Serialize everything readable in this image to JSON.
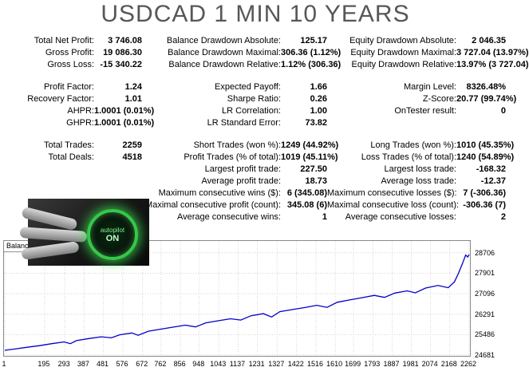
{
  "title": "USDCAD 1 MIN 10 YEARS",
  "autopilot": {
    "label": "autopilot",
    "state": "ON"
  },
  "stats": {
    "groups": [
      {
        "rows": [
          {
            "ll": "Total Net Profit:",
            "lv": "3 746.08",
            "ml": "Balance Drawdown Absolute:",
            "mv": "125.17",
            "rl": "Equity Drawdown Absolute:",
            "rv": "2 046.35"
          },
          {
            "ll": "Gross Profit:",
            "lv": "19 086.30",
            "ml": "Balance Drawdown Maximal:",
            "mv": "306.36 (1.12%)",
            "rl": "Equity Drawdown Maximal:",
            "rv": "3 727.04 (13.97%)"
          },
          {
            "ll": "Gross Loss:",
            "lv": "-15 340.22",
            "ml": "Balance Drawdown Relative:",
            "mv": "1.12% (306.36)",
            "rl": "Equity Drawdown Relative:",
            "rv": "13.97% (3 727.04)"
          }
        ]
      },
      {
        "rows": [
          {
            "ll": "Profit Factor:",
            "lv": "1.24",
            "ml": "Expected Payoff:",
            "mv": "1.66",
            "rl": "Margin Level:",
            "rv": "8326.48%"
          },
          {
            "ll": "Recovery Factor:",
            "lv": "1.01",
            "ml": "Sharpe Ratio:",
            "mv": "0.26",
            "rl": "Z-Score:",
            "rv": "20.77 (99.74%)"
          },
          {
            "ll": "AHPR:",
            "lv": "1.0001 (0.01%)",
            "ml": "LR Correlation:",
            "mv": "1.00",
            "rl": "OnTester result:",
            "rv": "0"
          },
          {
            "ll": "GHPR:",
            "lv": "1.0001 (0.01%)",
            "ml": "LR Standard Error:",
            "mv": "73.82",
            "rl": "",
            "rv": ""
          }
        ]
      },
      {
        "rows": [
          {
            "ll": "Total Trades:",
            "lv": "2259",
            "ml": "Short Trades (won %):",
            "mv": "1249 (44.92%)",
            "rl": "Long Trades (won %):",
            "rv": "1010 (45.35%)"
          },
          {
            "ll": "Total Deals:",
            "lv": "4518",
            "ml": "Profit Trades (% of total):",
            "mv": "1019 (45.11%)",
            "rl": "Loss Trades (% of total):",
            "rv": "1240 (54.89%)"
          },
          {
            "ll": "",
            "lv": "",
            "ml": "Largest profit trade:",
            "mv": "227.50",
            "rl": "Largest loss trade:",
            "rv": "-168.32"
          },
          {
            "ll": "",
            "lv": "",
            "ml": "Average profit trade:",
            "mv": "18.73",
            "rl": "Average loss trade:",
            "rv": "-12.37"
          },
          {
            "ll": "",
            "lv": "",
            "ml": "Maximum consecutive wins ($):",
            "mv": "6 (345.08)",
            "rl": "Maximum consecutive losses ($):",
            "rv": "7 (-306.36)"
          },
          {
            "ll": "",
            "lv": "",
            "ml": "Maximal consecutive profit (count):",
            "mv": "345.08 (6)",
            "rl": "Maximal consecutive loss (count):",
            "rv": "-306.36 (7)"
          },
          {
            "ll": "",
            "lv": "",
            "ml": "Average consecutive wins:",
            "mv": "1",
            "rl": "Average consecutive losses:",
            "rv": "2"
          }
        ]
      }
    ]
  },
  "chart_data": {
    "type": "line",
    "legend": "Balance",
    "line_color": "#0000C8",
    "grid": true,
    "xlim": [
      1,
      2262
    ],
    "ylim": [
      24681,
      29140
    ],
    "x_ticks": [
      1,
      195,
      293,
      387,
      481,
      576,
      672,
      762,
      856,
      948,
      1043,
      1137,
      1231,
      1327,
      1422,
      1516,
      1610,
      1699,
      1793,
      1887,
      1981,
      2074,
      2168,
      2262
    ],
    "y_ticks": [
      24681,
      25486,
      26291,
      27096,
      27901,
      28706
    ],
    "series": [
      {
        "name": "Balance",
        "points": [
          [
            1,
            24870
          ],
          [
            50,
            24920
          ],
          [
            110,
            24990
          ],
          [
            170,
            25050
          ],
          [
            230,
            25130
          ],
          [
            290,
            25200
          ],
          [
            320,
            25130
          ],
          [
            350,
            25250
          ],
          [
            410,
            25330
          ],
          [
            470,
            25400
          ],
          [
            520,
            25360
          ],
          [
            560,
            25480
          ],
          [
            620,
            25550
          ],
          [
            650,
            25460
          ],
          [
            700,
            25620
          ],
          [
            760,
            25700
          ],
          [
            820,
            25780
          ],
          [
            880,
            25860
          ],
          [
            930,
            25790
          ],
          [
            980,
            25950
          ],
          [
            1040,
            26030
          ],
          [
            1100,
            26110
          ],
          [
            1150,
            26060
          ],
          [
            1200,
            26230
          ],
          [
            1260,
            26310
          ],
          [
            1300,
            26180
          ],
          [
            1340,
            26390
          ],
          [
            1400,
            26470
          ],
          [
            1460,
            26550
          ],
          [
            1520,
            26640
          ],
          [
            1570,
            26560
          ],
          [
            1620,
            26760
          ],
          [
            1680,
            26850
          ],
          [
            1740,
            26940
          ],
          [
            1800,
            27030
          ],
          [
            1850,
            26950
          ],
          [
            1900,
            27120
          ],
          [
            1960,
            27210
          ],
          [
            2000,
            27130
          ],
          [
            2050,
            27320
          ],
          [
            2110,
            27420
          ],
          [
            2160,
            27330
          ],
          [
            2190,
            27560
          ],
          [
            2210,
            27900
          ],
          [
            2230,
            28300
          ],
          [
            2245,
            28620
          ],
          [
            2255,
            28540
          ],
          [
            2262,
            28640
          ]
        ]
      }
    ]
  }
}
